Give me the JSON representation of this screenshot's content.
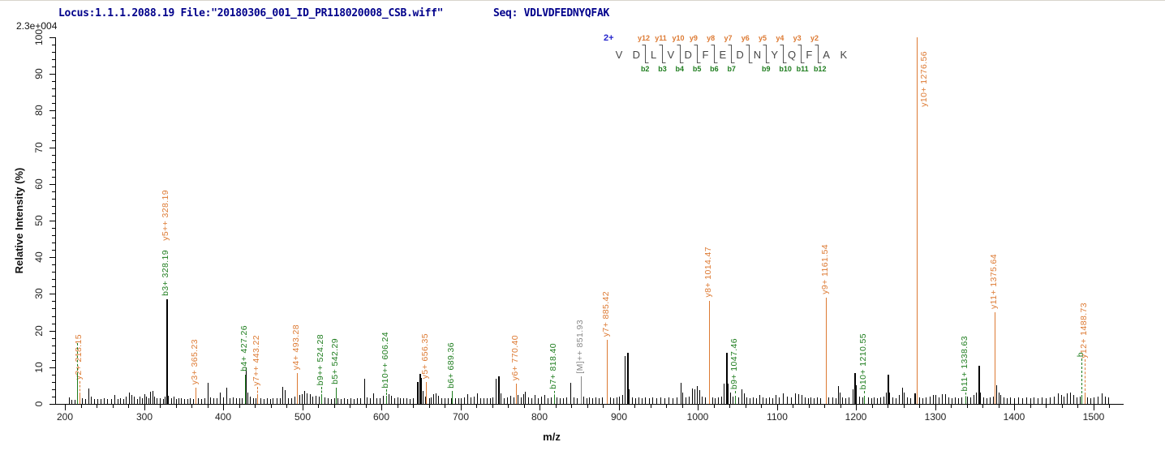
{
  "header": {
    "locus_file": "Locus:1.1.1.2088.19 File:\"20180306_001_ID_PR118020008_CSB.wiff\"",
    "seq": "Seq: VDLVDFEDNYQFAK",
    "max_intensity": "2.3e+004"
  },
  "peptide": {
    "charge": "2+",
    "residues": [
      "V",
      "D",
      "L",
      "V",
      "D",
      "F",
      "E",
      "D",
      "N",
      "Y",
      "Q",
      "F",
      "A",
      "K"
    ],
    "cuts": [
      {
        "after": 2,
        "y": "y12",
        "b": "b2"
      },
      {
        "after": 3,
        "y": "y11",
        "b": "b3"
      },
      {
        "after": 4,
        "y": "y10",
        "b": "b4"
      },
      {
        "after": 5,
        "y": "y9",
        "b": "b5"
      },
      {
        "after": 6,
        "y": "y8",
        "b": "b6"
      },
      {
        "after": 7,
        "y": "y7",
        "b": "b7"
      },
      {
        "after": 8,
        "y": "y6",
        "b": ""
      },
      {
        "after": 9,
        "y": "y5",
        "b": "b9"
      },
      {
        "after": 10,
        "y": "y4",
        "b": "b10"
      },
      {
        "after": 11,
        "y": "y3",
        "b": "b11"
      },
      {
        "after": 12,
        "y": "y2",
        "b": "b12"
      }
    ]
  },
  "colors": {
    "y_ion": "#dd7a33",
    "b_ion": "#1e7d1e",
    "precursor": "#888888",
    "peak": "#000000",
    "title": "#00008b",
    "charge": "#2424cc"
  },
  "chart_data": {
    "type": "mass-spectrum-stem",
    "xlabel": "m/z",
    "ylabel": "Relative  Intensity (%)",
    "intensity_scale": "2.3e+004",
    "xlim": [
      200,
      1500
    ],
    "ylim": [
      0,
      100
    ],
    "x_major_step": 100,
    "x_minor_step": 20,
    "y_major_step": 10,
    "y_minor_step": 2,
    "annotated_peaks": [
      {
        "label": "y2+ 218.15",
        "mz": 218.15,
        "intensity": 2.5,
        "series": "y",
        "label_at": 6.5,
        "dashed": true
      },
      {
        "label": "",
        "mz": 215.2,
        "intensity": 8,
        "series": "b",
        "label_at": 17,
        "dashed": true
      },
      {
        "label": "b3+ 328.19",
        "mz": 328.19,
        "intensity": 28.5,
        "series": "b",
        "label_at": 29.5,
        "peak_color": "black",
        "width": 2
      },
      {
        "label": "y5++ 328.19",
        "mz": 328.19,
        "intensity": 0,
        "series": "y",
        "label_at": 44.5,
        "no_line": true
      },
      {
        "label": "y3+ 365.23",
        "mz": 365.23,
        "intensity": 4.5,
        "series": "y",
        "label_at": 5.3
      },
      {
        "label": "b4+ 427.26",
        "mz": 427.26,
        "intensity": 8,
        "series": "b",
        "label_at": 8.8
      },
      {
        "label": "y7++ 443.22",
        "mz": 443.22,
        "intensity": 2,
        "series": "y",
        "label_at": 5,
        "dashed": true
      },
      {
        "label": "y4+ 493.28",
        "mz": 493.28,
        "intensity": 8.5,
        "series": "y",
        "label_at": 9.3
      },
      {
        "label": "b9++ 524.28",
        "mz": 524.28,
        "intensity": 2,
        "series": "b",
        "label_at": 5,
        "dashed": true
      },
      {
        "label": "b5+ 542.29",
        "mz": 542.29,
        "intensity": 4.5,
        "series": "b",
        "label_at": 5.3
      },
      {
        "label": "b10++ 606.24",
        "mz": 606.24,
        "intensity": 1.5,
        "series": "b",
        "label_at": 4.4,
        "dashed": true
      },
      {
        "label": "y5+ 656.35",
        "mz": 656.35,
        "intensity": 6,
        "series": "y",
        "label_at": 6.8
      },
      {
        "label": "b6+ 689.36",
        "mz": 689.36,
        "intensity": 3.5,
        "series": "b",
        "label_at": 4.3
      },
      {
        "label": "y6+ 770.40",
        "mz": 770.4,
        "intensity": 5.5,
        "series": "y",
        "label_at": 6.3
      },
      {
        "label": "b7+ 818.40",
        "mz": 818.4,
        "intensity": 2,
        "series": "b",
        "label_at": 4,
        "dashed": true
      },
      {
        "label": "[M]++ 851.93",
        "mz": 851.93,
        "intensity": 7.5,
        "series": "M",
        "label_at": 8.3
      },
      {
        "label": "y7+ 885.42",
        "mz": 885.42,
        "intensity": 17.5,
        "series": "y",
        "label_at": 18.3
      },
      {
        "label": "y8+ 1014.47",
        "mz": 1014.47,
        "intensity": 28,
        "series": "y",
        "label_at": 29
      },
      {
        "label": "b9+ 1047.46",
        "mz": 1047.46,
        "intensity": 1.5,
        "series": "b",
        "label_at": 4,
        "dashed": true
      },
      {
        "label": "y9+ 1161.54",
        "mz": 1161.54,
        "intensity": 29,
        "series": "y",
        "label_at": 30
      },
      {
        "label": "b10+ 1210.55",
        "mz": 1210.55,
        "intensity": 1.5,
        "series": "b",
        "label_at": 4,
        "dashed": true
      },
      {
        "label": "y10+ 1276.56",
        "mz": 1276.56,
        "intensity": 100,
        "series": "y",
        "label_at": 81,
        "side": true
      },
      {
        "label": "b11+ 1338.63",
        "mz": 1338.63,
        "intensity": 1.5,
        "series": "b",
        "label_at": 3.5,
        "dashed": true
      },
      {
        "label": "y11+ 1375.64",
        "mz": 1375.64,
        "intensity": 25,
        "series": "y",
        "label_at": 26
      },
      {
        "label": "b",
        "mz": 1485.3,
        "intensity": 1.8,
        "series": "b",
        "label_at": 12.8,
        "dashed": true
      },
      {
        "label": "y12+ 1488.73",
        "mz": 1488.73,
        "intensity": 2.5,
        "series": "y",
        "label_at": 12.5,
        "dashed": true
      }
    ],
    "noise_peaks": [
      [
        205,
        1.8
      ],
      [
        208,
        1.2
      ],
      [
        212,
        1.2
      ],
      [
        222,
        1.5
      ],
      [
        226,
        1.3
      ],
      [
        230,
        4.3
      ],
      [
        233,
        2
      ],
      [
        237,
        1.3
      ],
      [
        241,
        1.4
      ],
      [
        245,
        1.3
      ],
      [
        249,
        1.6
      ],
      [
        253,
        1.3
      ],
      [
        258,
        1.4
      ],
      [
        263,
        2.4
      ],
      [
        267,
        1.3
      ],
      [
        270,
        1.5
      ],
      [
        274,
        1.4
      ],
      [
        277,
        2
      ],
      [
        281,
        3
      ],
      [
        284,
        2.5
      ],
      [
        287,
        2
      ],
      [
        291,
        1.4
      ],
      [
        294,
        2
      ],
      [
        297,
        1.5
      ],
      [
        300,
        2.6
      ],
      [
        303,
        2
      ],
      [
        306,
        1.5
      ],
      [
        308,
        3.4
      ],
      [
        311,
        3.6
      ],
      [
        313,
        2
      ],
      [
        316,
        1.5
      ],
      [
        320,
        1.6
      ],
      [
        324,
        1.4
      ],
      [
        326,
        2
      ],
      [
        330,
        2.2
      ],
      [
        334,
        1.6
      ],
      [
        337,
        2
      ],
      [
        340,
        1.4
      ],
      [
        344,
        1.6
      ],
      [
        347,
        1.5
      ],
      [
        351,
        1.4
      ],
      [
        355,
        1.3
      ],
      [
        358,
        1.5
      ],
      [
        362,
        1.4
      ],
      [
        368,
        1.5
      ],
      [
        372,
        1.4
      ],
      [
        376,
        1.5
      ],
      [
        380,
        5.8
      ],
      [
        384,
        1.8
      ],
      [
        388,
        1.5
      ],
      [
        392,
        1.6
      ],
      [
        396,
        3.2
      ],
      [
        400,
        1.8
      ],
      [
        404,
        4.4
      ],
      [
        408,
        1.6
      ],
      [
        412,
        1.8
      ],
      [
        416,
        1.5
      ],
      [
        420,
        1.6
      ],
      [
        424,
        1.6
      ],
      [
        429,
        10
      ],
      [
        431,
        3
      ],
      [
        434,
        2
      ],
      [
        438,
        1.6
      ],
      [
        441,
        1.5
      ],
      [
        447,
        1.5
      ],
      [
        451,
        1.4
      ],
      [
        455,
        1.6
      ],
      [
        459,
        1.4
      ],
      [
        463,
        1.5
      ],
      [
        468,
        1.6
      ],
      [
        472,
        1.5
      ],
      [
        475,
        4.6
      ],
      [
        478,
        3.8
      ],
      [
        482,
        1.6
      ],
      [
        486,
        1.5
      ],
      [
        490,
        2
      ],
      [
        496,
        2.5
      ],
      [
        499,
        2.6
      ],
      [
        503,
        3.6
      ],
      [
        506,
        2.8
      ],
      [
        510,
        2.6
      ],
      [
        513,
        2
      ],
      [
        517,
        2.2
      ],
      [
        521,
        2
      ],
      [
        528,
        1.8
      ],
      [
        532,
        1.6
      ],
      [
        536,
        1.4
      ],
      [
        540,
        1.5
      ],
      [
        545,
        1.6
      ],
      [
        549,
        1.4
      ],
      [
        553,
        1.5
      ],
      [
        557,
        1.4
      ],
      [
        561,
        1.5
      ],
      [
        565,
        1.4
      ],
      [
        569,
        1.5
      ],
      [
        573,
        1.5
      ],
      [
        578,
        6.8
      ],
      [
        582,
        1.8
      ],
      [
        586,
        1.6
      ],
      [
        590,
        2.8
      ],
      [
        594,
        1.6
      ],
      [
        598,
        1.5
      ],
      [
        602,
        2.2
      ],
      [
        609,
        2.6
      ],
      [
        612,
        2.2
      ],
      [
        616,
        1.6
      ],
      [
        620,
        1.8
      ],
      [
        624,
        1.5
      ],
      [
        628,
        1.6
      ],
      [
        632,
        1.5
      ],
      [
        636,
        1.4
      ],
      [
        640,
        1.6
      ],
      [
        645,
        6,
        2
      ],
      [
        648,
        8.2,
        2
      ],
      [
        650,
        7
      ],
      [
        652,
        3.6
      ],
      [
        655,
        2
      ],
      [
        660,
        1.6
      ],
      [
        663,
        1.8
      ],
      [
        666,
        2.6
      ],
      [
        669,
        2.8
      ],
      [
        672,
        2.2
      ],
      [
        676,
        1.6
      ],
      [
        680,
        1.5
      ],
      [
        684,
        1.6
      ],
      [
        688,
        1.5
      ],
      [
        693,
        1.6
      ],
      [
        697,
        1.5
      ],
      [
        701,
        1.6
      ],
      [
        705,
        1.8
      ],
      [
        709,
        2.6
      ],
      [
        713,
        1.8
      ],
      [
        717,
        2
      ],
      [
        721,
        2.8
      ],
      [
        725,
        1.6
      ],
      [
        729,
        1.5
      ],
      [
        733,
        1.6
      ],
      [
        737,
        1.5
      ],
      [
        741,
        1.8
      ],
      [
        745,
        6.8
      ],
      [
        748,
        7.6,
        2
      ],
      [
        751,
        2.8
      ],
      [
        755,
        1.6
      ],
      [
        759,
        1.8
      ],
      [
        763,
        2.2
      ],
      [
        767,
        1.8
      ],
      [
        772,
        2.4
      ],
      [
        776,
        1.8
      ],
      [
        779,
        2.6
      ],
      [
        782,
        3.4
      ],
      [
        786,
        1.8
      ],
      [
        790,
        1.5
      ],
      [
        794,
        2.4
      ],
      [
        798,
        1.6
      ],
      [
        802,
        2
      ],
      [
        806,
        2.4
      ],
      [
        810,
        1.6
      ],
      [
        814,
        1.8
      ],
      [
        822,
        1.8
      ],
      [
        826,
        1.5
      ],
      [
        830,
        1.6
      ],
      [
        834,
        1.8
      ],
      [
        839,
        5.8
      ],
      [
        843,
        1.8
      ],
      [
        847,
        1.6
      ],
      [
        855,
        2
      ],
      [
        859,
        1.6
      ],
      [
        863,
        1.8
      ],
      [
        867,
        1.6
      ],
      [
        871,
        1.8
      ],
      [
        875,
        1.6
      ],
      [
        879,
        1.8
      ],
      [
        889,
        1.8
      ],
      [
        893,
        1.6
      ],
      [
        897,
        1.8
      ],
      [
        901,
        2
      ],
      [
        905,
        2.4
      ],
      [
        908,
        13
      ],
      [
        911,
        14,
        2
      ],
      [
        913,
        4
      ],
      [
        917,
        1.8
      ],
      [
        921,
        1.6
      ],
      [
        925,
        1.8
      ],
      [
        929,
        1.6
      ],
      [
        933,
        1.8
      ],
      [
        938,
        1.6
      ],
      [
        943,
        1.8
      ],
      [
        948,
        1.6
      ],
      [
        953,
        1.8
      ],
      [
        958,
        1.6
      ],
      [
        963,
        1.8
      ],
      [
        968,
        1.6
      ],
      [
        973,
        1.8
      ],
      [
        978,
        5.8
      ],
      [
        981,
        3
      ],
      [
        985,
        1.8
      ],
      [
        989,
        2
      ],
      [
        993,
        4.2
      ],
      [
        996,
        4
      ],
      [
        999,
        4.8
      ],
      [
        1002,
        3.8
      ],
      [
        1005,
        2
      ],
      [
        1009,
        1.8
      ],
      [
        1018,
        1.8
      ],
      [
        1022,
        1.6
      ],
      [
        1026,
        1.8
      ],
      [
        1030,
        2
      ],
      [
        1033,
        5.5
      ],
      [
        1036,
        14,
        2
      ],
      [
        1038,
        5.5
      ],
      [
        1041,
        3
      ],
      [
        1044,
        2
      ],
      [
        1051,
        1.8
      ],
      [
        1055,
        4
      ],
      [
        1058,
        2.8
      ],
      [
        1062,
        1.8
      ],
      [
        1066,
        1.6
      ],
      [
        1070,
        1.8
      ],
      [
        1074,
        1.6
      ],
      [
        1078,
        2.4
      ],
      [
        1082,
        1.8
      ],
      [
        1086,
        1.6
      ],
      [
        1090,
        1.8
      ],
      [
        1094,
        1.6
      ],
      [
        1098,
        2.4
      ],
      [
        1103,
        1.8
      ],
      [
        1108,
        2.8
      ],
      [
        1113,
        2
      ],
      [
        1118,
        1.8
      ],
      [
        1123,
        2.8
      ],
      [
        1127,
        2.6
      ],
      [
        1131,
        2.4
      ],
      [
        1135,
        1.8
      ],
      [
        1139,
        1.6
      ],
      [
        1143,
        1.8
      ],
      [
        1147,
        1.6
      ],
      [
        1151,
        1.8
      ],
      [
        1155,
        1.6
      ],
      [
        1165,
        1.8
      ],
      [
        1170,
        1.8
      ],
      [
        1174,
        1.6
      ],
      [
        1177,
        4.8
      ],
      [
        1179,
        3
      ],
      [
        1183,
        1.8
      ],
      [
        1187,
        1.6
      ],
      [
        1191,
        1.8
      ],
      [
        1196,
        4
      ],
      [
        1198,
        8.5,
        2
      ],
      [
        1200,
        5
      ],
      [
        1204,
        2
      ],
      [
        1208,
        1.8
      ],
      [
        1215,
        1.8
      ],
      [
        1219,
        1.6
      ],
      [
        1223,
        1.8
      ],
      [
        1227,
        1.6
      ],
      [
        1231,
        1.8
      ],
      [
        1235,
        2
      ],
      [
        1238,
        3
      ],
      [
        1240,
        8,
        2
      ],
      [
        1242,
        3
      ],
      [
        1246,
        1.8
      ],
      [
        1250,
        1.6
      ],
      [
        1254,
        2.4
      ],
      [
        1258,
        4.4
      ],
      [
        1261,
        3
      ],
      [
        1265,
        1.8
      ],
      [
        1269,
        1.6
      ],
      [
        1274,
        2.8,
        2
      ],
      [
        1280,
        1.8
      ],
      [
        1284,
        1.6
      ],
      [
        1288,
        1.8
      ],
      [
        1293,
        2
      ],
      [
        1297,
        2.4
      ],
      [
        1301,
        2.4
      ],
      [
        1305,
        1.8
      ],
      [
        1309,
        2.6
      ],
      [
        1313,
        2.6
      ],
      [
        1317,
        1.8
      ],
      [
        1321,
        1.6
      ],
      [
        1325,
        1.8
      ],
      [
        1329,
        1.6
      ],
      [
        1333,
        1.8
      ],
      [
        1341,
        2
      ],
      [
        1345,
        1.8
      ],
      [
        1349,
        2.4
      ],
      [
        1352,
        3
      ],
      [
        1355,
        10.5,
        2
      ],
      [
        1357,
        3
      ],
      [
        1361,
        1.8
      ],
      [
        1365,
        1.6
      ],
      [
        1369,
        1.8
      ],
      [
        1373,
        2
      ],
      [
        1377,
        5
      ],
      [
        1380,
        3
      ],
      [
        1383,
        2.4
      ],
      [
        1387,
        1.8
      ],
      [
        1391,
        1.6
      ],
      [
        1395,
        1.8
      ],
      [
        1400,
        1.6
      ],
      [
        1405,
        1.8
      ],
      [
        1410,
        1.6
      ],
      [
        1415,
        1.8
      ],
      [
        1420,
        1.6
      ],
      [
        1425,
        1.8
      ],
      [
        1430,
        1.6
      ],
      [
        1435,
        1.8
      ],
      [
        1440,
        1.6
      ],
      [
        1445,
        1.8
      ],
      [
        1450,
        2
      ],
      [
        1455,
        2.8
      ],
      [
        1459,
        2.4
      ],
      [
        1463,
        2
      ],
      [
        1467,
        2.8
      ],
      [
        1471,
        3
      ],
      [
        1475,
        2.4
      ],
      [
        1479,
        1.8
      ],
      [
        1483,
        2
      ],
      [
        1492,
        1.8
      ],
      [
        1496,
        1.6
      ],
      [
        1501,
        1.8
      ],
      [
        1506,
        2
      ],
      [
        1511,
        2.8
      ],
      [
        1515,
        2
      ],
      [
        1519,
        1.8
      ]
    ]
  }
}
